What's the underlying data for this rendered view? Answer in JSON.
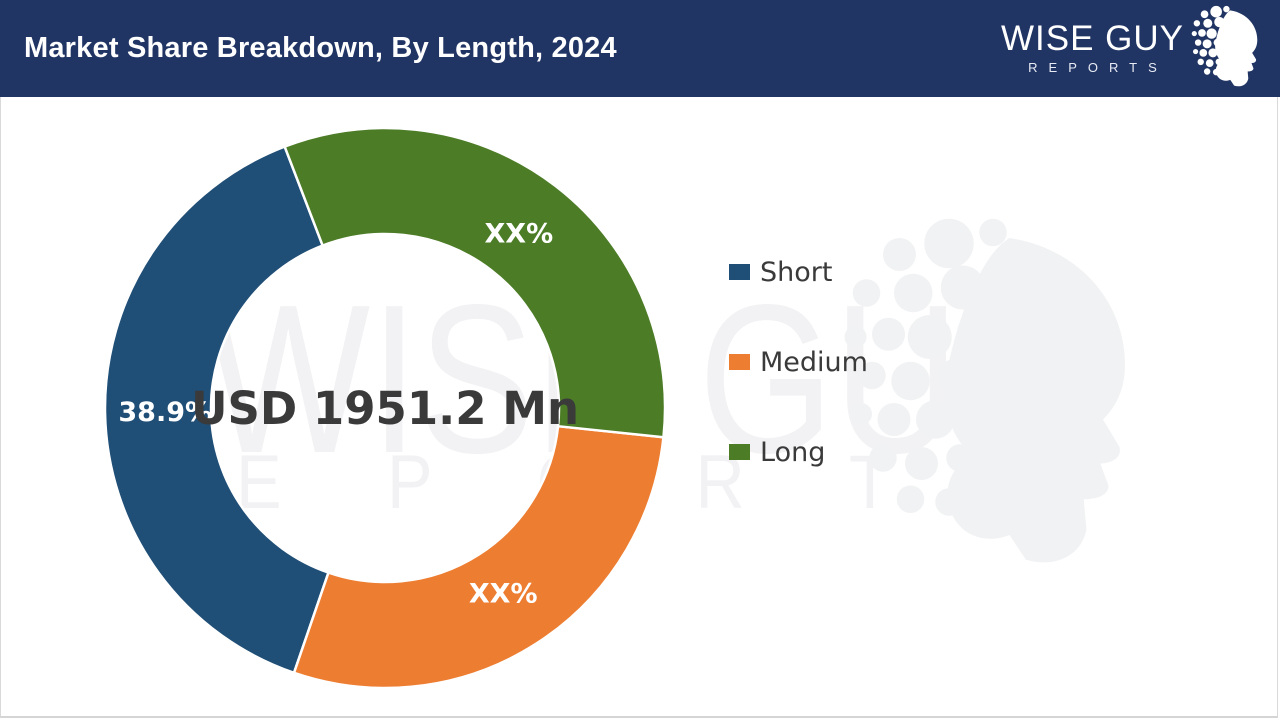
{
  "header": {
    "title": "Market Share Breakdown, By Length, 2024",
    "logo": {
      "line1": "WISE GUY",
      "line2": "REPORTS"
    }
  },
  "watermark": {
    "line1": "WISE GU",
    "line2": "E P O R T S"
  },
  "chart_data": {
    "type": "pie",
    "subtype": "donut",
    "title": "Market Share Breakdown, By Length, 2024",
    "categories": [
      "Short",
      "Medium",
      "Long"
    ],
    "values": [
      38.9,
      28.6,
      32.5
    ],
    "labels": [
      "38.9%",
      "XX%",
      "XX%"
    ],
    "colors": [
      "#1F4E76",
      "#ED7D31",
      "#4C7C26"
    ],
    "center_label": "USD 1951.2 Mn",
    "start_angle": 111,
    "counterclock": true,
    "inner_radius_ratio": 0.62,
    "legend_position": "right"
  },
  "legend": {
    "items": [
      {
        "label": "Short",
        "color": "#1F4E76"
      },
      {
        "label": "Medium",
        "color": "#ED7D31"
      },
      {
        "label": "Long",
        "color": "#4C7C26"
      }
    ]
  },
  "colors": {
    "header_bg": "#213564",
    "header_text": "#ffffff",
    "watermark": "#f2f2f4",
    "center_text": "#3a3a3a",
    "border": "#d9d9d9"
  }
}
